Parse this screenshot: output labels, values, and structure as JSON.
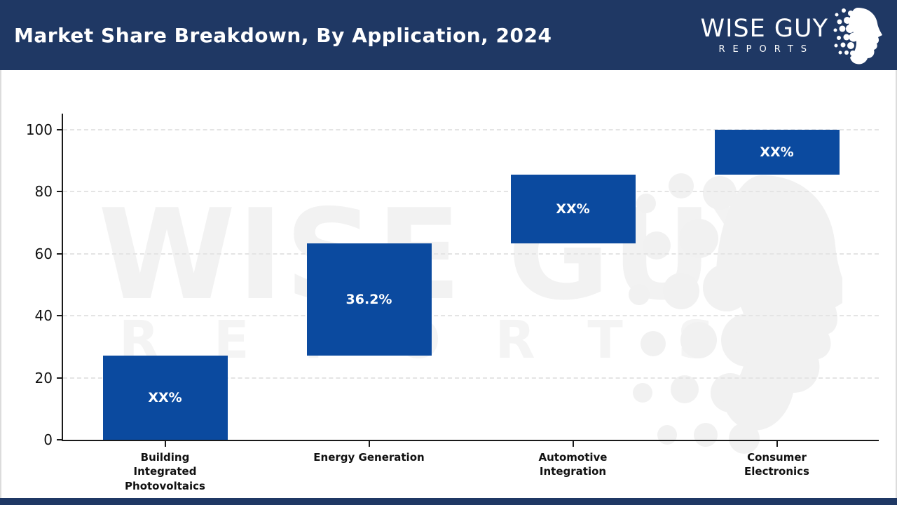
{
  "header": {
    "title": "Market Share Breakdown, By Application, 2024",
    "logo": {
      "line1": "WISE GUY",
      "line2": "REPORTS"
    }
  },
  "watermark": {
    "line1": "WISE GUY",
    "line2": "REPORTS"
  },
  "colors": {
    "header_bg": "#1f3864",
    "footer_bg": "#1f3864",
    "bar": "#0b4a9f",
    "bar_label": "#ffffff",
    "gridline": "#e4e4e4",
    "axis": "#1a1a1a",
    "watermark": "#f2f2f2"
  },
  "chart_data": {
    "type": "bar",
    "variant": "waterfall",
    "title": "Market Share Breakdown, By Application, 2024",
    "categories": [
      "Building Integrated Photovoltaics",
      "Energy Generation",
      "Automotive Integration",
      "Consumer Electronics"
    ],
    "category_label_lines": [
      [
        "Building",
        "Integrated",
        "Photovoltaics"
      ],
      [
        "Energy Generation"
      ],
      [
        "Automotive",
        "Integration"
      ],
      [
        "Consumer",
        "Electronics"
      ]
    ],
    "segments": [
      {
        "category": "Building Integrated Photovoltaics",
        "base": 0,
        "top": 27.2,
        "value": 27.2,
        "label": "XX%"
      },
      {
        "category": "Energy Generation",
        "base": 27.2,
        "top": 63.4,
        "value": 36.2,
        "label": "36.2%"
      },
      {
        "category": "Automotive Integration",
        "base": 63.4,
        "top": 85.6,
        "value": 22.2,
        "label": "XX%"
      },
      {
        "category": "Consumer Electronics",
        "base": 85.6,
        "top": 100,
        "value": 14.4,
        "label": "XX%"
      }
    ],
    "yticks": [
      0,
      20,
      40,
      60,
      80,
      100
    ],
    "ylim": [
      0,
      105
    ],
    "xlabel": "",
    "ylabel": "",
    "grid": "horizontal-dashed",
    "legend": "none"
  }
}
